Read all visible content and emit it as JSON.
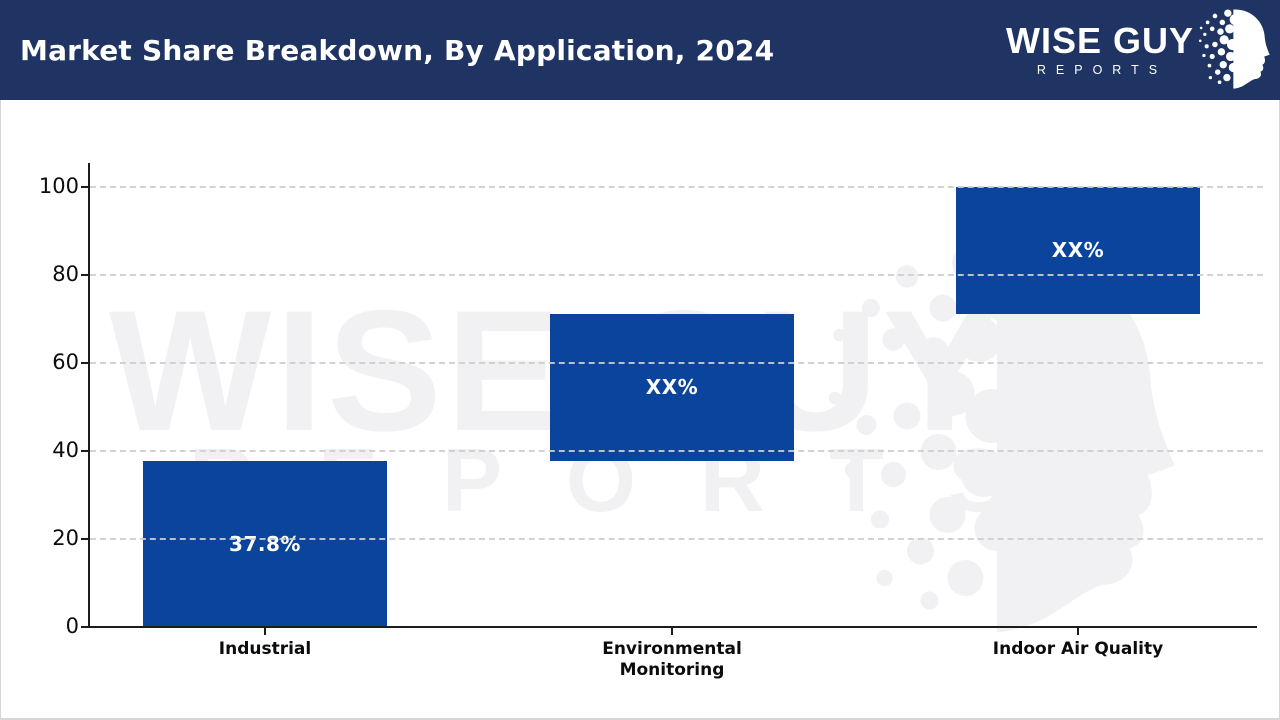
{
  "header": {
    "title": "Market Share Breakdown, By Application, 2024",
    "bg_color": "#1f3463",
    "logo": {
      "main": "WISE GUY",
      "sub": "REPORTS"
    }
  },
  "watermark": {
    "line1": "WISE GUY",
    "line2": "REPORTS"
  },
  "chart_data": {
    "type": "bar",
    "subtype": "floating-segment-breakdown",
    "title": "Market Share Breakdown, By Application, 2024",
    "categories": [
      "Industrial",
      "Environmental Monitoring",
      "Indoor Air Quality"
    ],
    "segments": [
      {
        "category": "Industrial",
        "from": 0,
        "to": 37.8,
        "label": "37.8%"
      },
      {
        "category": "Environmental Monitoring",
        "from": 37.8,
        "to": 71.2,
        "label": "XX%"
      },
      {
        "category": "Indoor Air Quality",
        "from": 71.2,
        "to": 100,
        "label": "XX%"
      }
    ],
    "yticks": [
      0,
      20,
      40,
      60,
      80,
      100
    ],
    "ylim": [
      0,
      105
    ],
    "xlabel": "",
    "ylabel": "",
    "bar_color": "#0a449c",
    "grid": "horizontal-dashed",
    "gridline_color": "#d9d9d9",
    "legend": "none"
  }
}
